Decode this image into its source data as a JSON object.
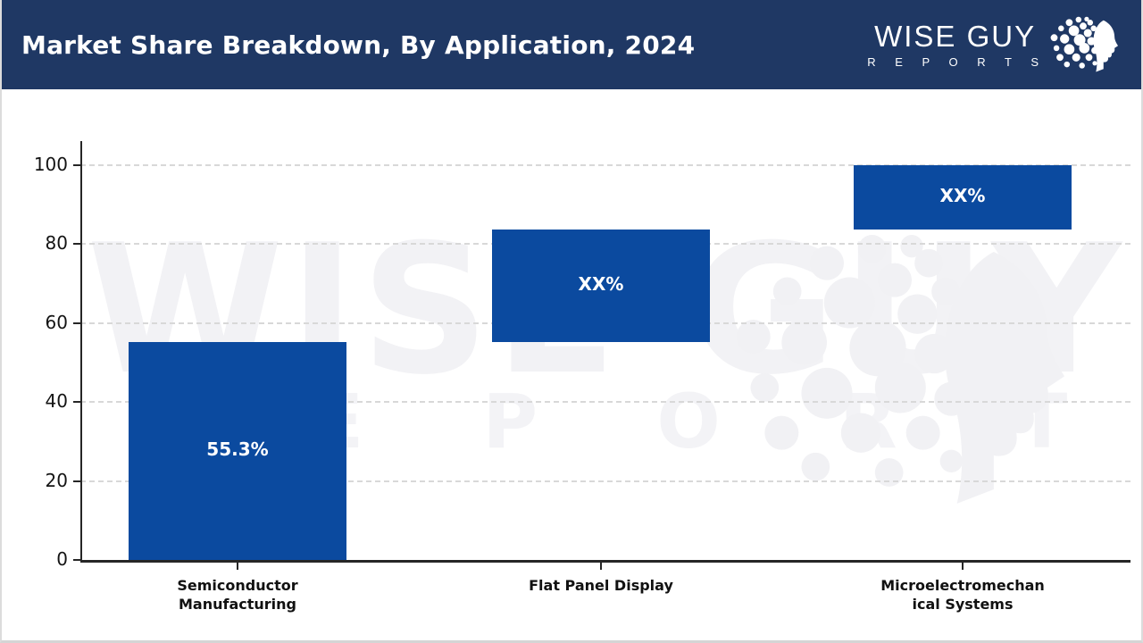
{
  "header": {
    "title": "Market Share Breakdown, By Application, 2024",
    "logo": {
      "line1": "WISE GUY",
      "line2": "R E P O R T S"
    }
  },
  "watermark": {
    "line1": "WISE GUY",
    "line2": "R E P O R T S"
  },
  "colors": {
    "header_bg": "#1f3864",
    "bar": "#0b4a9f",
    "bar_label": "#ffffff",
    "axis": "#262626",
    "gridline": "#d8d8d8",
    "watermark": "#f2f2f5"
  },
  "chart_data": {
    "type": "bar",
    "variant": "waterfall-floating-segments",
    "title": "Market Share Breakdown, By Application, 2024",
    "categories": [
      "Semiconductor Manufacturing",
      "Flat Panel Display",
      "Microelectromechanical Systems"
    ],
    "x_tick_display": [
      "Semiconductor\nManufacturing",
      "Flat Panel Display",
      "Microelectromechan\nical Systems"
    ],
    "segments": [
      {
        "category": "Semiconductor Manufacturing",
        "start": 0,
        "end": 55.3,
        "label": "55.3%"
      },
      {
        "category": "Flat Panel Display",
        "start": 55.3,
        "end": 83.6,
        "label": "XX%"
      },
      {
        "category": "Microelectromechanical Systems",
        "start": 83.6,
        "end": 100,
        "label": "XX%"
      }
    ],
    "yticks": [
      0,
      20,
      40,
      60,
      80,
      100
    ],
    "ylim": [
      0,
      106
    ],
    "grid": "horizontal-dashed",
    "legend": "none"
  }
}
